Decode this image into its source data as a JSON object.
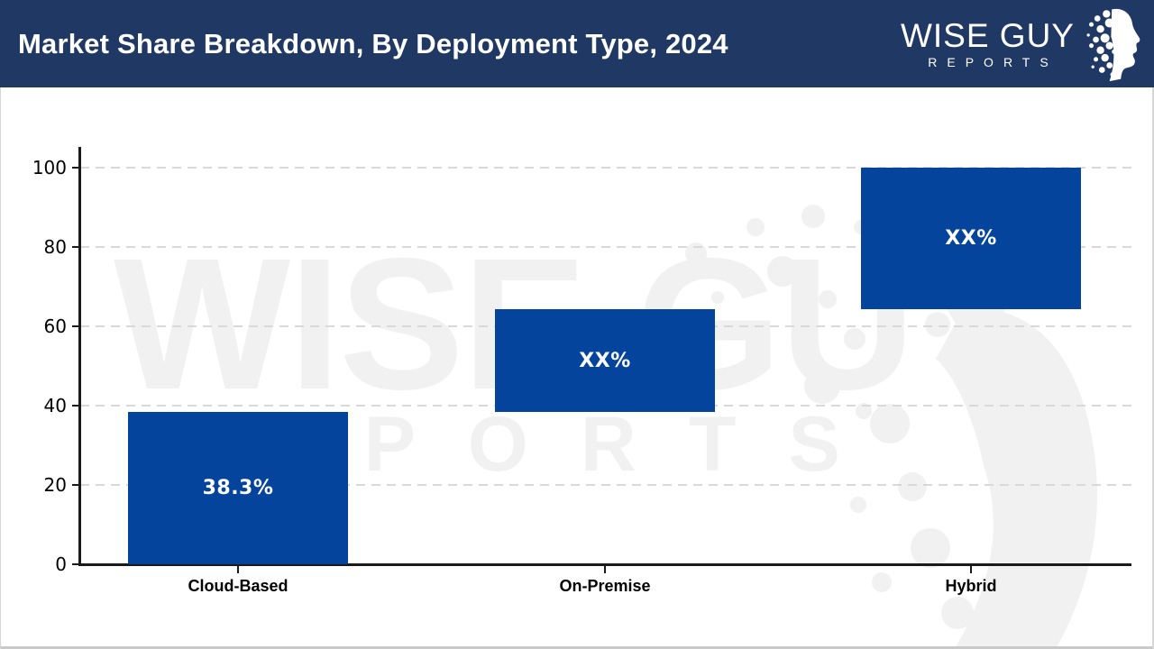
{
  "header": {
    "title": "Market Share Breakdown, By Deployment Type, 2024",
    "bg_color": "#1F3864",
    "logo": {
      "line1": "WISE GUY",
      "line2": "REPORTS"
    }
  },
  "watermark": {
    "line1": "WISE GUY",
    "line2": "REPORTS"
  },
  "chart_data": {
    "type": "bar",
    "subtype": "floating-waterfall",
    "title": "Market Share Breakdown, By Deployment Type, 2024",
    "categories": [
      "Cloud-Based",
      "On-Premise",
      "Hybrid"
    ],
    "segments": [
      {
        "category": "Cloud-Based",
        "start": 0,
        "end": 38.3,
        "label": "38.3%"
      },
      {
        "category": "On-Premise",
        "start": 38.3,
        "end": 64.3,
        "label": "XX%"
      },
      {
        "category": "Hybrid",
        "start": 64.3,
        "end": 100,
        "label": "XX%"
      }
    ],
    "yticks": [
      0,
      20,
      40,
      60,
      80,
      100
    ],
    "ylim": [
      0,
      105
    ],
    "xlabel": "",
    "ylabel": "",
    "grid": "dashed-horizontal",
    "legend": "none",
    "bar_color": "#04449C",
    "bar_label_color": "#ffffff",
    "axis_color": "#1a1a1a",
    "gridline_color": "#d9d9d9"
  }
}
